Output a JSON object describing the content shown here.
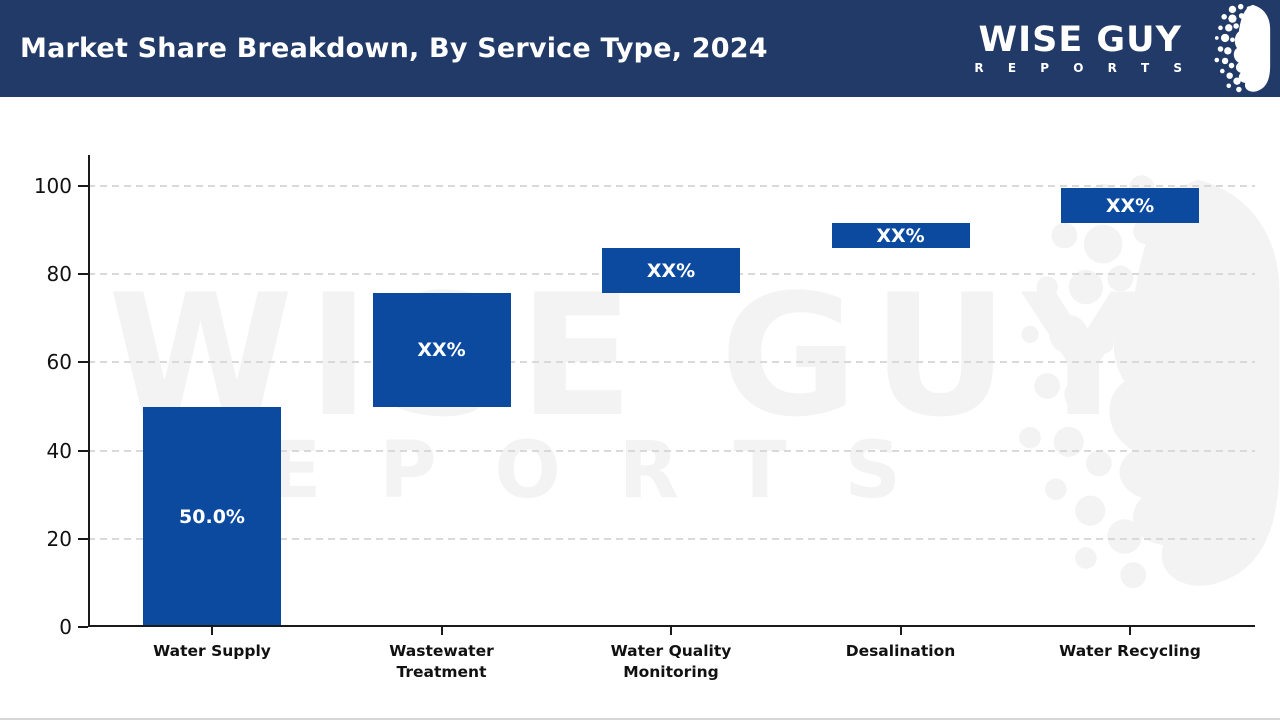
{
  "header": {
    "title": "Market Share Breakdown, By Service Type, 2024",
    "bg_color": "#223a67",
    "logo": {
      "line1": "WISE GUY",
      "line2": "R E P O R T S"
    }
  },
  "watermark": {
    "line1": "WISE GUY",
    "line2": "REPORTS",
    "color": "#f3f3f3"
  },
  "chart_data": {
    "type": "bar",
    "subtype": "waterfall",
    "title": "Market Share Breakdown, By Service Type, 2024",
    "categories": [
      "Water Supply",
      "Wastewater Treatment",
      "Water Quality Monitoring",
      "Desalination",
      "Water Recycling"
    ],
    "segments": [
      {
        "category": "Water Supply",
        "start": 0,
        "end": 50.0,
        "label": "50.0%"
      },
      {
        "category": "Wastewater Treatment",
        "start": 50.0,
        "end": 75.7,
        "label": "XX%"
      },
      {
        "category": "Water Quality Monitoring",
        "start": 75.7,
        "end": 85.9,
        "label": "XX%"
      },
      {
        "category": "Desalination",
        "start": 85.9,
        "end": 91.6,
        "label": "XX%"
      },
      {
        "category": "Water Recycling",
        "start": 91.6,
        "end": 99.5,
        "label": "XX%"
      }
    ],
    "xlabel": "",
    "ylabel": "",
    "ylim": [
      0,
      107
    ],
    "yticks": [
      0,
      20,
      40,
      60,
      80,
      100
    ],
    "grid": "horizontal-dashed",
    "legend": "none",
    "bar_color": "#0c4aa0",
    "gridline_color": "#d9d9d9",
    "axis_color": "#1a1a1a",
    "value_label_color": "#ffffff"
  }
}
